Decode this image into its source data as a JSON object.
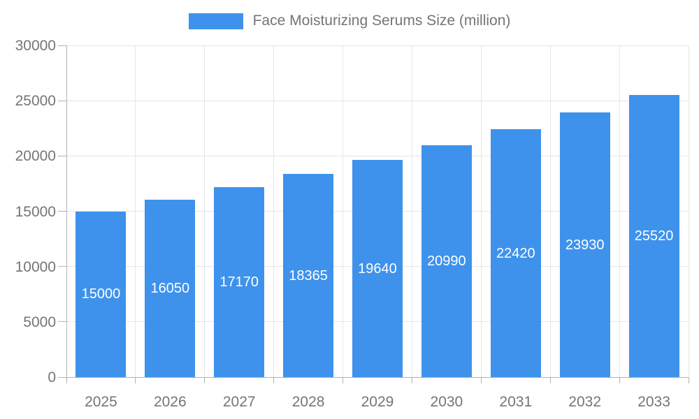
{
  "legend": {
    "label": "Face Moisturizing Serums Size (million)"
  },
  "chart_data": {
    "type": "bar",
    "title": "Face Moisturizing Serums Size (million)",
    "categories": [
      "2025",
      "2026",
      "2027",
      "2028",
      "2029",
      "2030",
      "2031",
      "2032",
      "2033"
    ],
    "values": [
      15000,
      16050,
      17170,
      18365,
      19640,
      20990,
      22420,
      23930,
      25520
    ],
    "value_labels": [
      "15000",
      "16050",
      "17170",
      "18365",
      "19640",
      "20990",
      "22420",
      "23930",
      "25520"
    ],
    "xlabel": "",
    "ylabel": "",
    "ylim": [
      0,
      30000
    ],
    "yticks": [
      0,
      5000,
      10000,
      15000,
      20000,
      25000,
      30000
    ],
    "ytick_labels": [
      "0",
      "5000",
      "10000",
      "15000",
      "20000",
      "25000",
      "30000"
    ],
    "grid": true,
    "legend_position": "top-center",
    "colors": {
      "bar": "#3E92EC",
      "value_label": "#FFFFFF",
      "axis_text": "#757575",
      "gridline": "#E6E6E6",
      "axis_line": "#B3B3B3",
      "background": "#FFFFFF"
    }
  }
}
